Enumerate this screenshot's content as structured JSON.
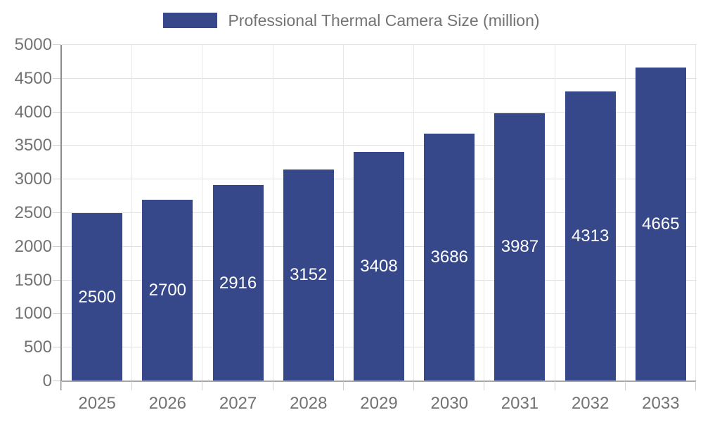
{
  "legend": {
    "label": "Professional Thermal Camera Size (million)",
    "swatch_color": "#36488A"
  },
  "chart_data": {
    "type": "bar",
    "title": "Professional Thermal Camera Size (million)",
    "categories": [
      "2025",
      "2026",
      "2027",
      "2028",
      "2029",
      "2030",
      "2031",
      "2032",
      "2033"
    ],
    "values": [
      2500,
      2700,
      2916,
      3152,
      3408,
      3686,
      3987,
      4313,
      4665
    ],
    "xlabel": "",
    "ylabel": "",
    "ylim": [
      0,
      5000
    ],
    "ytick_step": 500,
    "grid": true,
    "legend_position": "top",
    "bar_color": "#36488A",
    "value_label_color": "#FFFFFF",
    "axis_text_color": "#737373",
    "gridline_color": "#E0E0E0"
  }
}
